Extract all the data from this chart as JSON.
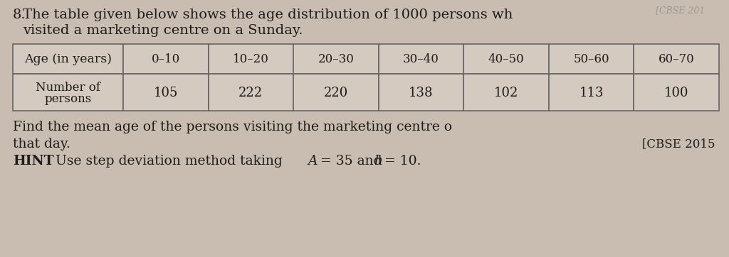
{
  "question_number": "8.",
  "question_line1": " The table given below shows the age distribution of 1000 persons wh",
  "question_line2": "   visited a marketing centre on a Sunday.",
  "watermark": "[CBSE 201",
  "col_header": "Age (in years)",
  "age_groups": [
    "0–10",
    "10–20",
    "20–30",
    "30–40",
    "40–50",
    "50–60",
    "60–70"
  ],
  "row_header1": "Number of",
  "row_header2": "persons",
  "values": [
    105,
    222,
    220,
    138,
    102,
    113,
    100
  ],
  "find_line1": "Find the mean age of the persons visiting the marketing centre o",
  "find_line2": "that day.",
  "cbse_ref": "[CBSE 2015",
  "hint_bold": "HINT",
  "hint_rest": "   Use step deviation method taking ",
  "hint_A": "A",
  "hint_mid": " = 35 and ",
  "hint_h": "h",
  "hint_end": " = 10.",
  "bg_color": "#c8bdb0",
  "cell_light": "#d4cac0",
  "cell_dark": "#bdb3a8",
  "text_color": "#1c1c1c",
  "border_color": "#666666",
  "watermark_color": "#999999"
}
